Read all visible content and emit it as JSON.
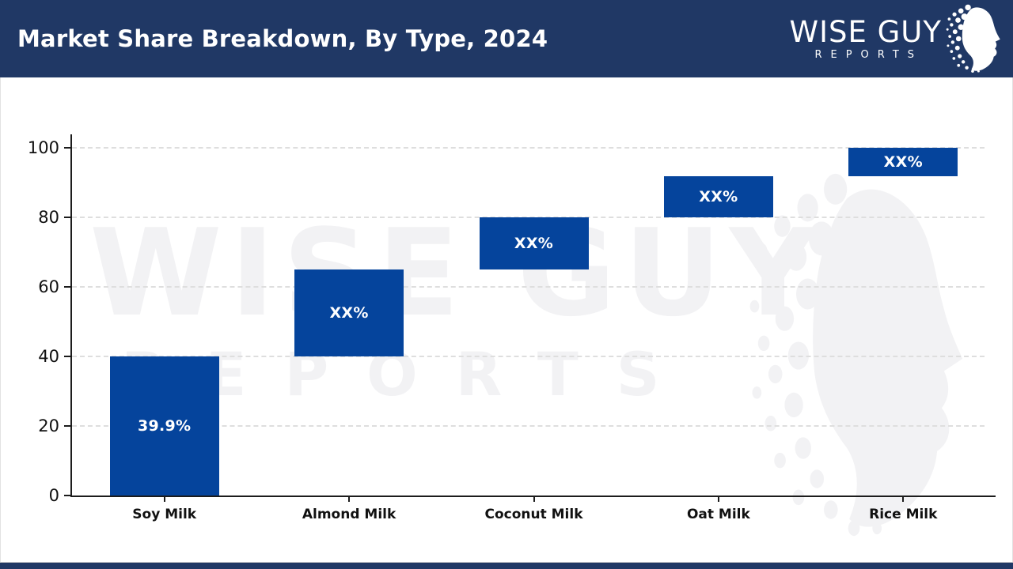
{
  "header": {
    "title": "Market Share Breakdown, By Type, 2024",
    "logo": {
      "line1": "WISE GUY",
      "line2": "REPORTS"
    }
  },
  "watermark": {
    "line1": "WISE GUY",
    "line2": "REPORTS"
  },
  "colors": {
    "header_bg": "#203865",
    "bar": "#05449c",
    "grid": "#dedede",
    "axis": "#1c1c1c",
    "value_label": "#ffffff",
    "watermark": "#f2f2f4"
  },
  "chart_data": {
    "type": "bar",
    "subtype": "waterfall",
    "title": "Market Share Breakdown, By Type, 2024",
    "categories": [
      "Soy Milk",
      "Almond Milk",
      "Coconut Milk",
      "Oat Milk",
      "Rice Milk"
    ],
    "segments": [
      {
        "category": "Soy Milk",
        "start": 0,
        "end": 39.9,
        "label": "39.9%"
      },
      {
        "category": "Almond Milk",
        "start": 39.9,
        "end": 65.0,
        "label": "XX%"
      },
      {
        "category": "Coconut Milk",
        "start": 65.0,
        "end": 80.1,
        "label": "XX%"
      },
      {
        "category": "Oat Milk",
        "start": 80.1,
        "end": 91.8,
        "label": "XX%"
      },
      {
        "category": "Rice Milk",
        "start": 91.8,
        "end": 100.0,
        "label": "XX%"
      }
    ],
    "yticks": [
      0,
      20,
      40,
      60,
      80,
      100
    ],
    "ylim": [
      0,
      104
    ],
    "xlabel": "",
    "ylabel": "",
    "grid": "dashed-horizontal",
    "legend": "none"
  }
}
